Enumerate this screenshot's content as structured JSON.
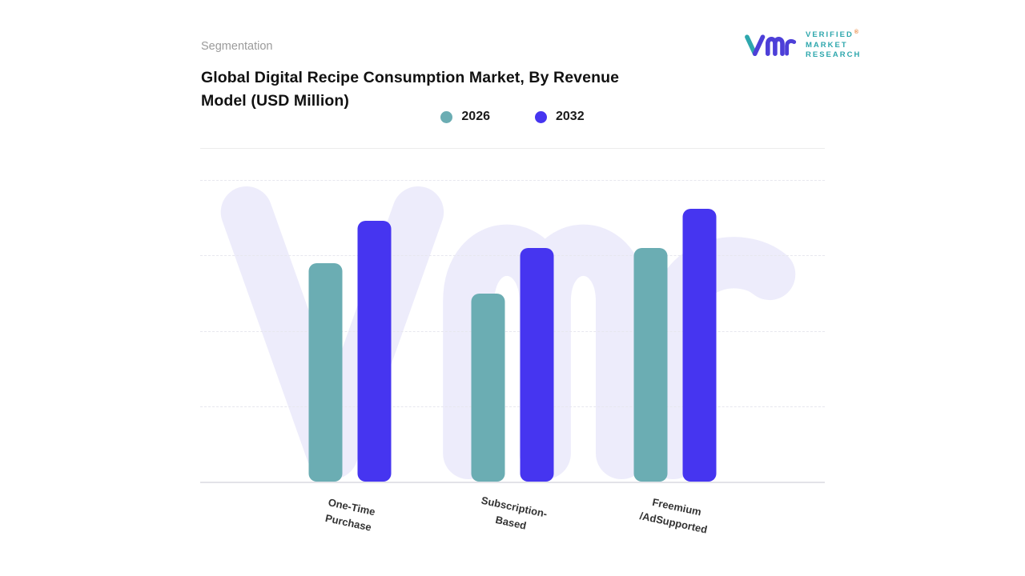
{
  "header": {
    "section_label": "Segmentation",
    "title_lines": [
      "Global Digital Recipe Consumption Market, By Revenue",
      "Model (USD Million)"
    ]
  },
  "logo": {
    "lines": [
      "VERIFIED",
      "MARKET",
      "RESEARCH"
    ],
    "registered": "®",
    "text_color": "#2ea7ad",
    "mark_purple": "#4d3fd8",
    "mark_teal": "#2ea7ad",
    "registered_color": "#e8833a"
  },
  "watermark": {
    "icon": "vmr-monogram",
    "color": "#edecfb"
  },
  "chart_data": {
    "type": "bar",
    "title": "Global Digital Recipe Consumption Market, By Revenue Model (USD Million)",
    "categories": [
      "One-Time\nPurchase",
      "Subscription-\nBased",
      "Freemium\n/AdSupported"
    ],
    "series": [
      {
        "name": "2026",
        "color": "#6badb3",
        "values": [
          72,
          62,
          77
        ]
      },
      {
        "name": "2032",
        "color": "#4635f0",
        "values": [
          86,
          77,
          90
        ]
      }
    ],
    "xlabel": "",
    "ylabel": "USD Million",
    "ylim": [
      0,
      100
    ],
    "grid": "dashed-horizontal",
    "legend_position": "top"
  }
}
